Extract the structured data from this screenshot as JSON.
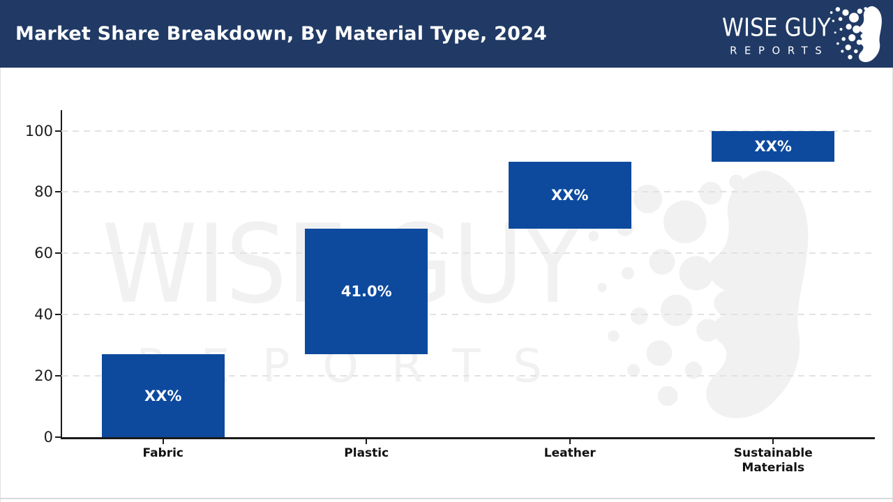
{
  "header": {
    "title": "Market Share Breakdown, By Material Type, 2024",
    "background_color": "#203A65",
    "logo": {
      "line1": "WISE GUY",
      "line2": "REPORTS"
    }
  },
  "watermark": {
    "line1": "WISE GUY",
    "line2": "REPORTS",
    "color": "#f1f1f1"
  },
  "chart_data": {
    "type": "bar",
    "variant": "floating-segment-waterfall",
    "title": "Market Share Breakdown, By Material Type, 2024",
    "categories": [
      "Fabric",
      "Plastic",
      "Leather",
      "Sustainable Materials"
    ],
    "segments": [
      {
        "category": "Fabric",
        "start": 0,
        "end": 27,
        "label": "XX%"
      },
      {
        "category": "Plastic",
        "start": 27,
        "end": 68,
        "label": "41.0%"
      },
      {
        "category": "Leather",
        "start": 68,
        "end": 90,
        "label": "XX%"
      },
      {
        "category": "Sustainable Materials",
        "start": 90,
        "end": 100,
        "label": "XX%"
      }
    ],
    "ylim": [
      0,
      100
    ],
    "yticks": [
      0,
      20,
      40,
      60,
      80,
      100
    ],
    "xlabel": "",
    "ylabel": "",
    "grid": {
      "axis": "y",
      "style": "dashed",
      "color": "#e2e2e2"
    },
    "legend": "none",
    "bar_color": "#0D4A9E",
    "bar_label_color": "#ffffff",
    "axis_color": "#1a1a1a"
  }
}
